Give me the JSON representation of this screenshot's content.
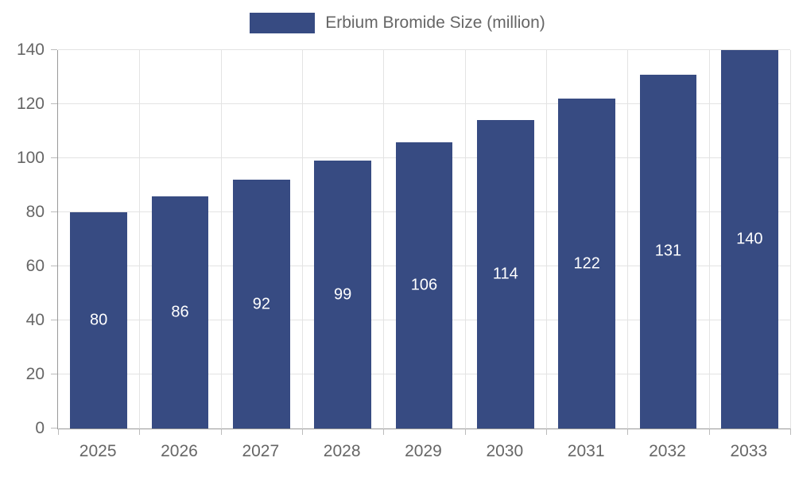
{
  "legend": {
    "label": "Erbium Bromide Size (million)"
  },
  "chart_data": {
    "type": "bar",
    "title": "",
    "xlabel": "",
    "ylabel": "",
    "categories": [
      "2025",
      "2026",
      "2027",
      "2028",
      "2029",
      "2030",
      "2031",
      "2032",
      "2033"
    ],
    "series": [
      {
        "name": "Erbium Bromide Size (million)",
        "values": [
          80,
          86,
          92,
          99,
          106,
          114,
          122,
          131,
          140
        ]
      }
    ],
    "ylim": [
      0,
      140
    ],
    "yticks": [
      0,
      20,
      40,
      60,
      80,
      100,
      120,
      140
    ],
    "grid": true,
    "legend_position": "top-center",
    "value_label_position": "inside-center"
  },
  "colors": {
    "bar": "#374B82",
    "grid": "#E3E3E3",
    "axis_line": "#999999",
    "tick": "#BBBBBB",
    "text": "#666666",
    "value_label": "#FFFFFF",
    "background": "#FFFFFF"
  }
}
